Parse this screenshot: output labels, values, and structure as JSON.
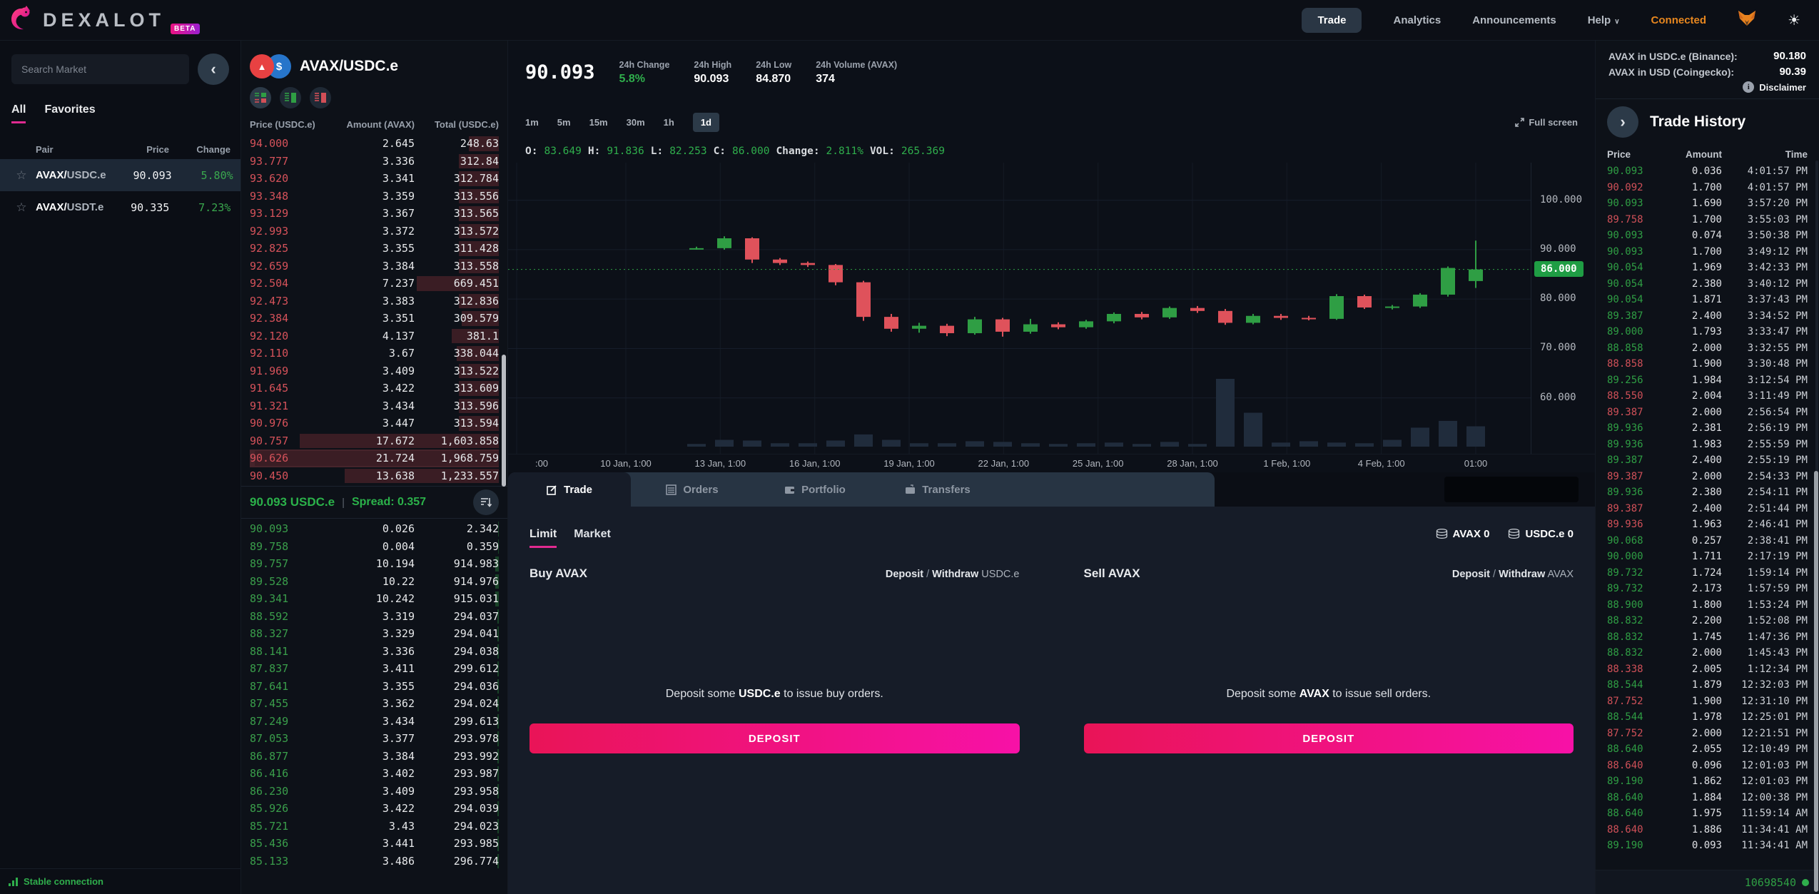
{
  "header": {
    "brand": "DEXALOT",
    "beta": "BETA",
    "nav": [
      {
        "label": "Trade"
      },
      {
        "label": "Analytics"
      },
      {
        "label": "Announcements"
      },
      {
        "label": "Help"
      }
    ],
    "connected": "Connected"
  },
  "sidebar": {
    "search_placeholder": "Search Market",
    "tabs": [
      {
        "label": "All"
      },
      {
        "label": "Favorites"
      }
    ],
    "columns": [
      "Pair",
      "Price",
      "Change"
    ],
    "pairs": [
      {
        "base": "AVAX/",
        "quote": "USDC.e",
        "price": "90.093",
        "change": "5.80%",
        "selected": true
      },
      {
        "base": "AVAX/",
        "quote": "USDT.e",
        "price": "90.335",
        "change": "7.23%",
        "selected": false
      }
    ],
    "status": "Stable connection"
  },
  "orderbook": {
    "pair_title": "AVAX/USDC.e",
    "base_symbol": "A",
    "quote_symbol": "$",
    "columns": [
      "Price (USDC.e)",
      "Amount (AVAX)",
      "Total (USDC.e)"
    ],
    "asks": [
      {
        "p": "94.000",
        "a": "2.645",
        "t": "248.63",
        "d": 12,
        "h": false
      },
      {
        "p": "93.777",
        "a": "3.336",
        "t": "312.84",
        "d": 16,
        "h": false
      },
      {
        "p": "93.620",
        "a": "3.341",
        "t": "312.784",
        "d": 16,
        "h": false
      },
      {
        "p": "93.348",
        "a": "3.359",
        "t": "313.556",
        "d": 16,
        "h": false
      },
      {
        "p": "93.129",
        "a": "3.367",
        "t": "313.565",
        "d": 16,
        "h": false
      },
      {
        "p": "92.993",
        "a": "3.372",
        "t": "313.572",
        "d": 16,
        "h": false
      },
      {
        "p": "92.825",
        "a": "3.355",
        "t": "311.428",
        "d": 16,
        "h": false
      },
      {
        "p": "92.659",
        "a": "3.384",
        "t": "313.558",
        "d": 16,
        "h": false
      },
      {
        "p": "92.504",
        "a": "7.237",
        "t": "669.451",
        "d": 33,
        "h": false
      },
      {
        "p": "92.473",
        "a": "3.383",
        "t": "312.836",
        "d": 16,
        "h": false
      },
      {
        "p": "92.384",
        "a": "3.351",
        "t": "309.579",
        "d": 15,
        "h": false
      },
      {
        "p": "92.120",
        "a": "4.137",
        "t": "381.1",
        "d": 19,
        "h": false
      },
      {
        "p": "92.110",
        "a": "3.67",
        "t": "338.044",
        "d": 17,
        "h": false
      },
      {
        "p": "91.969",
        "a": "3.409",
        "t": "313.522",
        "d": 16,
        "h": false
      },
      {
        "p": "91.645",
        "a": "3.422",
        "t": "313.609",
        "d": 16,
        "h": false
      },
      {
        "p": "91.321",
        "a": "3.434",
        "t": "313.596",
        "d": 16,
        "h": false
      },
      {
        "p": "90.976",
        "a": "3.447",
        "t": "313.594",
        "d": 16,
        "h": false
      },
      {
        "p": "90.757",
        "a": "17.672",
        "t": "1,603.858",
        "d": 80,
        "h": false
      },
      {
        "p": "90.626",
        "a": "21.724",
        "t": "1,968.759",
        "d": 98,
        "h": true
      },
      {
        "p": "90.450",
        "a": "13.638",
        "t": "1,233.557",
        "d": 62,
        "h": false
      }
    ],
    "spread": {
      "last": "90.093 USDC.e",
      "sep": "|",
      "label": "Spread: 0.357"
    },
    "bids": [
      {
        "p": "90.093",
        "a": "0.026",
        "t": "2.342",
        "d": 0.4
      },
      {
        "p": "89.758",
        "a": "0.004",
        "t": "0.359",
        "d": 0.4
      },
      {
        "p": "89.757",
        "a": "10.194",
        "t": "914.983",
        "d": 1.4
      },
      {
        "p": "89.528",
        "a": "10.22",
        "t": "914.976",
        "d": 1.4
      },
      {
        "p": "89.341",
        "a": "10.242",
        "t": "915.031",
        "d": 1.4
      },
      {
        "p": "88.592",
        "a": "3.319",
        "t": "294.037",
        "d": 0.5
      },
      {
        "p": "88.327",
        "a": "3.329",
        "t": "294.041",
        "d": 0.5
      },
      {
        "p": "88.141",
        "a": "3.336",
        "t": "294.038",
        "d": 0.5
      },
      {
        "p": "87.837",
        "a": "3.411",
        "t": "299.612",
        "d": 0.5
      },
      {
        "p": "87.641",
        "a": "3.355",
        "t": "294.036",
        "d": 0.5
      },
      {
        "p": "87.455",
        "a": "3.362",
        "t": "294.024",
        "d": 0.5
      },
      {
        "p": "87.249",
        "a": "3.434",
        "t": "299.613",
        "d": 0.5
      },
      {
        "p": "87.053",
        "a": "3.377",
        "t": "293.978",
        "d": 0.5
      },
      {
        "p": "86.877",
        "a": "3.384",
        "t": "293.992",
        "d": 0.5
      },
      {
        "p": "86.416",
        "a": "3.402",
        "t": "293.987",
        "d": 0.5
      },
      {
        "p": "86.230",
        "a": "3.409",
        "t": "293.958",
        "d": 0.5
      },
      {
        "p": "85.926",
        "a": "3.422",
        "t": "294.039",
        "d": 0.5
      },
      {
        "p": "85.721",
        "a": "3.43",
        "t": "294.023",
        "d": 0.5
      },
      {
        "p": "85.436",
        "a": "3.441",
        "t": "293.985",
        "d": 0.5
      },
      {
        "p": "85.133",
        "a": "3.486",
        "t": "296.774",
        "d": 0.5
      }
    ]
  },
  "market_stats": {
    "last_price": "90.093",
    "items": [
      {
        "label": "24h Change",
        "value": "5.8%",
        "green": true
      },
      {
        "label": "24h High",
        "value": "90.093",
        "green": false
      },
      {
        "label": "24h Low",
        "value": "84.870",
        "green": false
      },
      {
        "label": "24h Volume (AVAX)",
        "value": "374",
        "green": false
      }
    ]
  },
  "chart": {
    "timeframes": [
      {
        "label": "1m"
      },
      {
        "label": "5m"
      },
      {
        "label": "15m"
      },
      {
        "label": "30m"
      },
      {
        "label": "1h"
      },
      {
        "label": "1d"
      }
    ],
    "active_timeframe": "1d",
    "fullscreen_label": "Full screen",
    "ohlc": {
      "o_label": "O:",
      "o": "83.649",
      "h_label": "H:",
      "h": "91.836",
      "l_label": "L:",
      "l": "82.253",
      "c_label": "C:",
      "c": "86.000",
      "change_label": "Change:",
      "change": "2.811%",
      "vol_label": "VOL:",
      "vol": "265.369"
    }
  },
  "chart_data": {
    "type": "candlestick",
    "title": "AVAX/USDC.e 1d",
    "y_ticks": [
      {
        "value": 100,
        "label": "100.000"
      },
      {
        "value": 90,
        "label": "90.000"
      },
      {
        "value": 80,
        "label": "80.000"
      },
      {
        "value": 70,
        "label": "70.000"
      },
      {
        "value": 60,
        "label": "60.000"
      }
    ],
    "y_range": [
      48.7,
      107.6
    ],
    "price_line": {
      "value": 86.0,
      "label": "86.000"
    },
    "x_labels": [
      ":00",
      "10 Jan, 1:00",
      "13 Jan, 1:00",
      "16 Jan, 1:00",
      "19 Jan, 1:00",
      "22 Jan, 1:00",
      "25 Jan, 1:00",
      "28 Jan, 1:00",
      "1 Feb, 1:00",
      "4 Feb, 1:00",
      "01:00"
    ],
    "up_color": "#2f9e44",
    "down_color": "#df525b",
    "volume_color": "#202c3c",
    "candles": [
      {
        "o": 90.2,
        "h": 90.6,
        "l": 90.0,
        "c": 90.3,
        "v": 0.04
      },
      {
        "o": 90.3,
        "h": 92.7,
        "l": 90.0,
        "c": 92.3,
        "v": 0.1
      },
      {
        "o": 92.3,
        "h": 92.5,
        "l": 87.3,
        "c": 88.0,
        "v": 0.09
      },
      {
        "o": 88.0,
        "h": 88.3,
        "l": 86.9,
        "c": 87.3,
        "v": 0.05
      },
      {
        "o": 87.3,
        "h": 87.6,
        "l": 86.5,
        "c": 86.9,
        "v": 0.05
      },
      {
        "o": 86.9,
        "h": 87.1,
        "l": 82.8,
        "c": 83.4,
        "v": 0.09
      },
      {
        "o": 83.4,
        "h": 83.7,
        "l": 75.6,
        "c": 76.4,
        "v": 0.18
      },
      {
        "o": 76.4,
        "h": 77.0,
        "l": 73.4,
        "c": 74.0,
        "v": 0.1
      },
      {
        "o": 74.0,
        "h": 75.2,
        "l": 73.2,
        "c": 74.6,
        "v": 0.05
      },
      {
        "o": 74.6,
        "h": 75.0,
        "l": 72.5,
        "c": 73.1,
        "v": 0.05
      },
      {
        "o": 73.1,
        "h": 76.4,
        "l": 72.8,
        "c": 75.9,
        "v": 0.08
      },
      {
        "o": 75.9,
        "h": 76.2,
        "l": 72.4,
        "c": 73.4,
        "v": 0.07
      },
      {
        "o": 73.4,
        "h": 76.0,
        "l": 73.0,
        "c": 74.9,
        "v": 0.05
      },
      {
        "o": 74.9,
        "h": 75.3,
        "l": 73.9,
        "c": 74.3,
        "v": 0.04
      },
      {
        "o": 74.3,
        "h": 75.8,
        "l": 74.0,
        "c": 75.5,
        "v": 0.05
      },
      {
        "o": 75.5,
        "h": 77.3,
        "l": 75.1,
        "c": 77.0,
        "v": 0.06
      },
      {
        "o": 77.0,
        "h": 77.4,
        "l": 75.9,
        "c": 76.3,
        "v": 0.04
      },
      {
        "o": 76.3,
        "h": 78.5,
        "l": 76.0,
        "c": 78.2,
        "v": 0.07
      },
      {
        "o": 78.2,
        "h": 78.6,
        "l": 77.2,
        "c": 77.6,
        "v": 0.04
      },
      {
        "o": 77.6,
        "h": 78.0,
        "l": 74.8,
        "c": 75.2,
        "v": 1.0
      },
      {
        "o": 75.2,
        "h": 77.0,
        "l": 74.9,
        "c": 76.6,
        "v": 0.5
      },
      {
        "o": 76.6,
        "h": 77.0,
        "l": 75.8,
        "c": 76.2,
        "v": 0.06
      },
      {
        "o": 76.2,
        "h": 76.6,
        "l": 75.7,
        "c": 76.0,
        "v": 0.08
      },
      {
        "o": 76.0,
        "h": 81.0,
        "l": 75.8,
        "c": 80.6,
        "v": 0.06
      },
      {
        "o": 80.6,
        "h": 80.9,
        "l": 78.0,
        "c": 78.3,
        "v": 0.05
      },
      {
        "o": 78.3,
        "h": 78.8,
        "l": 77.9,
        "c": 78.5,
        "v": 0.1
      },
      {
        "o": 78.5,
        "h": 81.2,
        "l": 78.2,
        "c": 80.9,
        "v": 0.28
      },
      {
        "o": 80.9,
        "h": 86.6,
        "l": 80.5,
        "c": 86.3,
        "v": 0.38
      },
      {
        "o": 83.649,
        "h": 91.836,
        "l": 82.253,
        "c": 86.0,
        "v": 0.3
      }
    ]
  },
  "trade_panel": {
    "tabs": [
      {
        "label": "Trade",
        "active": true
      },
      {
        "label": "Orders",
        "active": false
      },
      {
        "label": "Portfolio",
        "active": false
      },
      {
        "label": "Transfers",
        "active": false
      }
    ],
    "order_types": [
      {
        "label": "Limit"
      },
      {
        "label": "Market"
      }
    ],
    "balances": [
      {
        "asset": "AVAX",
        "amount": "0"
      },
      {
        "asset": "USDC.e",
        "amount": "0"
      }
    ],
    "buy": {
      "title": "Buy AVAX",
      "dw_deposit": "Deposit",
      "dw_sep": " / ",
      "dw_withdraw": "Withdraw",
      "dw_asset": " USDC.e",
      "msg_pre": "Deposit some ",
      "msg_asset": "USDC.e",
      "msg_post": " to issue buy orders.",
      "button": "DEPOSIT"
    },
    "sell": {
      "title": "Sell AVAX",
      "dw_deposit": "Deposit",
      "dw_sep": " / ",
      "dw_withdraw": "Withdraw",
      "dw_asset": " AVAX",
      "msg_pre": "Deposit some ",
      "msg_asset": "AVAX",
      "msg_post": " to issue sell orders.",
      "button": "DEPOSIT"
    }
  },
  "price_reference": {
    "rows": [
      {
        "label": "AVAX in USDC.e (Binance):",
        "value": "90.180"
      },
      {
        "label": "AVAX in USD (Coingecko):",
        "value": "90.39"
      }
    ],
    "disclaimer": "Disclaimer"
  },
  "trade_history": {
    "title": "Trade History",
    "columns": [
      "Price",
      "Amount",
      "Time"
    ],
    "rows": [
      {
        "p": "90.093",
        "a": "0.036",
        "t": "4:01:57 PM",
        "s": "b"
      },
      {
        "p": "90.092",
        "a": "1.700",
        "t": "4:01:57 PM",
        "s": "s"
      },
      {
        "p": "90.093",
        "a": "1.690",
        "t": "3:57:20 PM",
        "s": "b"
      },
      {
        "p": "89.758",
        "a": "1.700",
        "t": "3:55:03 PM",
        "s": "s"
      },
      {
        "p": "90.093",
        "a": "0.074",
        "t": "3:50:38 PM",
        "s": "b"
      },
      {
        "p": "90.093",
        "a": "1.700",
        "t": "3:49:12 PM",
        "s": "b"
      },
      {
        "p": "90.054",
        "a": "1.969",
        "t": "3:42:33 PM",
        "s": "b"
      },
      {
        "p": "90.054",
        "a": "2.380",
        "t": "3:40:12 PM",
        "s": "b"
      },
      {
        "p": "90.054",
        "a": "1.871",
        "t": "3:37:43 PM",
        "s": "b"
      },
      {
        "p": "89.387",
        "a": "2.400",
        "t": "3:34:52 PM",
        "s": "b"
      },
      {
        "p": "89.000",
        "a": "1.793",
        "t": "3:33:47 PM",
        "s": "b"
      },
      {
        "p": "88.858",
        "a": "2.000",
        "t": "3:32:55 PM",
        "s": "b"
      },
      {
        "p": "88.858",
        "a": "1.900",
        "t": "3:30:48 PM",
        "s": "s"
      },
      {
        "p": "89.256",
        "a": "1.984",
        "t": "3:12:54 PM",
        "s": "b"
      },
      {
        "p": "88.550",
        "a": "2.004",
        "t": "3:11:49 PM",
        "s": "s"
      },
      {
        "p": "89.387",
        "a": "2.000",
        "t": "2:56:54 PM",
        "s": "s"
      },
      {
        "p": "89.936",
        "a": "2.381",
        "t": "2:56:19 PM",
        "s": "b"
      },
      {
        "p": "89.936",
        "a": "1.983",
        "t": "2:55:59 PM",
        "s": "b"
      },
      {
        "p": "89.387",
        "a": "2.400",
        "t": "2:55:19 PM",
        "s": "b"
      },
      {
        "p": "89.387",
        "a": "2.000",
        "t": "2:54:33 PM",
        "s": "s"
      },
      {
        "p": "89.936",
        "a": "2.380",
        "t": "2:54:11 PM",
        "s": "b"
      },
      {
        "p": "89.387",
        "a": "2.400",
        "t": "2:51:44 PM",
        "s": "s"
      },
      {
        "p": "89.936",
        "a": "1.963",
        "t": "2:46:41 PM",
        "s": "s"
      },
      {
        "p": "90.068",
        "a": "0.257",
        "t": "2:38:41 PM",
        "s": "b"
      },
      {
        "p": "90.000",
        "a": "1.711",
        "t": "2:17:19 PM",
        "s": "b"
      },
      {
        "p": "89.732",
        "a": "1.724",
        "t": "1:59:14 PM",
        "s": "b"
      },
      {
        "p": "89.732",
        "a": "2.173",
        "t": "1:57:59 PM",
        "s": "b"
      },
      {
        "p": "88.900",
        "a": "1.800",
        "t": "1:53:24 PM",
        "s": "b"
      },
      {
        "p": "88.832",
        "a": "2.200",
        "t": "1:52:08 PM",
        "s": "b"
      },
      {
        "p": "88.832",
        "a": "1.745",
        "t": "1:47:36 PM",
        "s": "b"
      },
      {
        "p": "88.832",
        "a": "2.000",
        "t": "1:45:43 PM",
        "s": "b"
      },
      {
        "p": "88.338",
        "a": "2.005",
        "t": "1:12:34 PM",
        "s": "s"
      },
      {
        "p": "88.544",
        "a": "1.879",
        "t": "12:32:03 PM",
        "s": "b"
      },
      {
        "p": "87.752",
        "a": "1.900",
        "t": "12:31:10 PM",
        "s": "s"
      },
      {
        "p": "88.544",
        "a": "1.978",
        "t": "12:25:01 PM",
        "s": "b"
      },
      {
        "p": "87.752",
        "a": "2.000",
        "t": "12:21:51 PM",
        "s": "s"
      },
      {
        "p": "88.640",
        "a": "2.055",
        "t": "12:10:49 PM",
        "s": "b"
      },
      {
        "p": "88.640",
        "a": "0.096",
        "t": "12:01:03 PM",
        "s": "s"
      },
      {
        "p": "89.190",
        "a": "1.862",
        "t": "12:01:03 PM",
        "s": "b"
      },
      {
        "p": "88.640",
        "a": "1.884",
        "t": "12:00:38 PM",
        "s": "b"
      },
      {
        "p": "88.640",
        "a": "1.975",
        "t": "11:59:14 AM",
        "s": "b"
      },
      {
        "p": "88.640",
        "a": "1.886",
        "t": "11:34:41 AM",
        "s": "s"
      },
      {
        "p": "89.190",
        "a": "0.093",
        "t": "11:34:41 AM",
        "s": "b"
      }
    ],
    "block_number": "10698540"
  }
}
